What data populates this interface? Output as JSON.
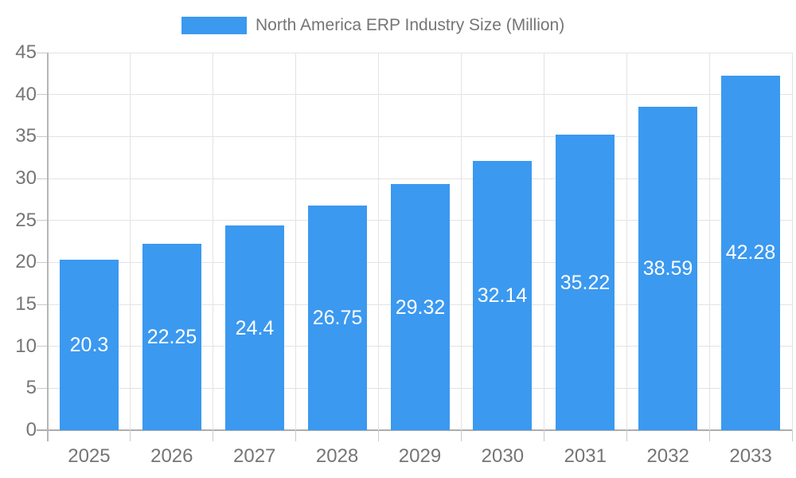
{
  "legend": {
    "label": "North America ERP Industry Size (Million)"
  },
  "colors": {
    "bar": "#3B99F0",
    "value_label": "#FFFFFF",
    "axis_text": "#757575",
    "legend_text": "#757575",
    "gridline": "#E3E3E3",
    "tick": "#C9C9C9",
    "axis_line": "#B5B5B5",
    "baseline": "#ADADAD",
    "background": "#FFFFFF"
  },
  "chart_data": {
    "type": "bar",
    "title": "North America ERP Industry Size (Million)",
    "categories": [
      "2025",
      "2026",
      "2027",
      "2028",
      "2029",
      "2030",
      "2031",
      "2032",
      "2033"
    ],
    "values": [
      20.3,
      22.25,
      24.4,
      26.75,
      29.32,
      32.14,
      35.22,
      38.59,
      42.28
    ],
    "series_name": "North America ERP Industry Size (Million)",
    "xlabel": "",
    "ylabel": "",
    "ylim": [
      0,
      45
    ],
    "y_ticks": [
      0,
      5,
      10,
      15,
      20,
      25,
      30,
      35,
      40,
      45
    ],
    "grid": true,
    "legend_position": "top",
    "value_label_position": "inside-middle"
  }
}
